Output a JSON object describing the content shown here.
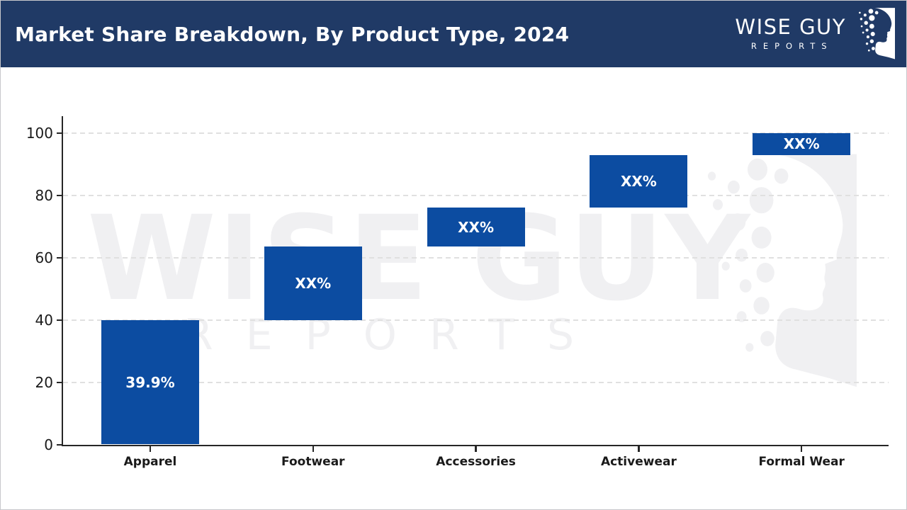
{
  "header": {
    "title": "Market Share Breakdown, By Product Type, 2024",
    "logo": {
      "wordmark": "WISE GUY",
      "subtitle": "REPORTS"
    }
  },
  "watermark": {
    "wordmark": "WISE GUY",
    "subtitle": "REPORTS"
  },
  "colors": {
    "header_bg": "#203a66",
    "bar": "#0c4ca1",
    "bar_label": "#ffffff",
    "axis": "#262626",
    "gridline": "#e0e0e0",
    "watermark": "#f0f0f2",
    "page_border": "#c8c8cc"
  },
  "chart_data": {
    "type": "bar",
    "subtype": "waterfall",
    "title": "Market Share Breakdown, By Product Type, 2024",
    "categories": [
      "Apparel",
      "Footwear",
      "Accessories",
      "Activewear",
      "Formal Wear"
    ],
    "bars": [
      {
        "category": "Apparel",
        "start": 0,
        "end": 40,
        "label": "39.9%"
      },
      {
        "category": "Footwear",
        "start": 40,
        "end": 63.5,
        "label": "XX%"
      },
      {
        "category": "Accessories",
        "start": 63.5,
        "end": 76,
        "label": "XX%"
      },
      {
        "category": "Activewear",
        "start": 76,
        "end": 93,
        "label": "XX%"
      },
      {
        "category": "Formal Wear",
        "start": 93,
        "end": 100,
        "label": "XX%"
      }
    ],
    "y_ticks": [
      0,
      20,
      40,
      60,
      80,
      100
    ],
    "ylim": [
      0,
      105
    ],
    "xlabel": "",
    "ylabel": "",
    "grid": "horizontal-dashed",
    "legend": "none"
  }
}
